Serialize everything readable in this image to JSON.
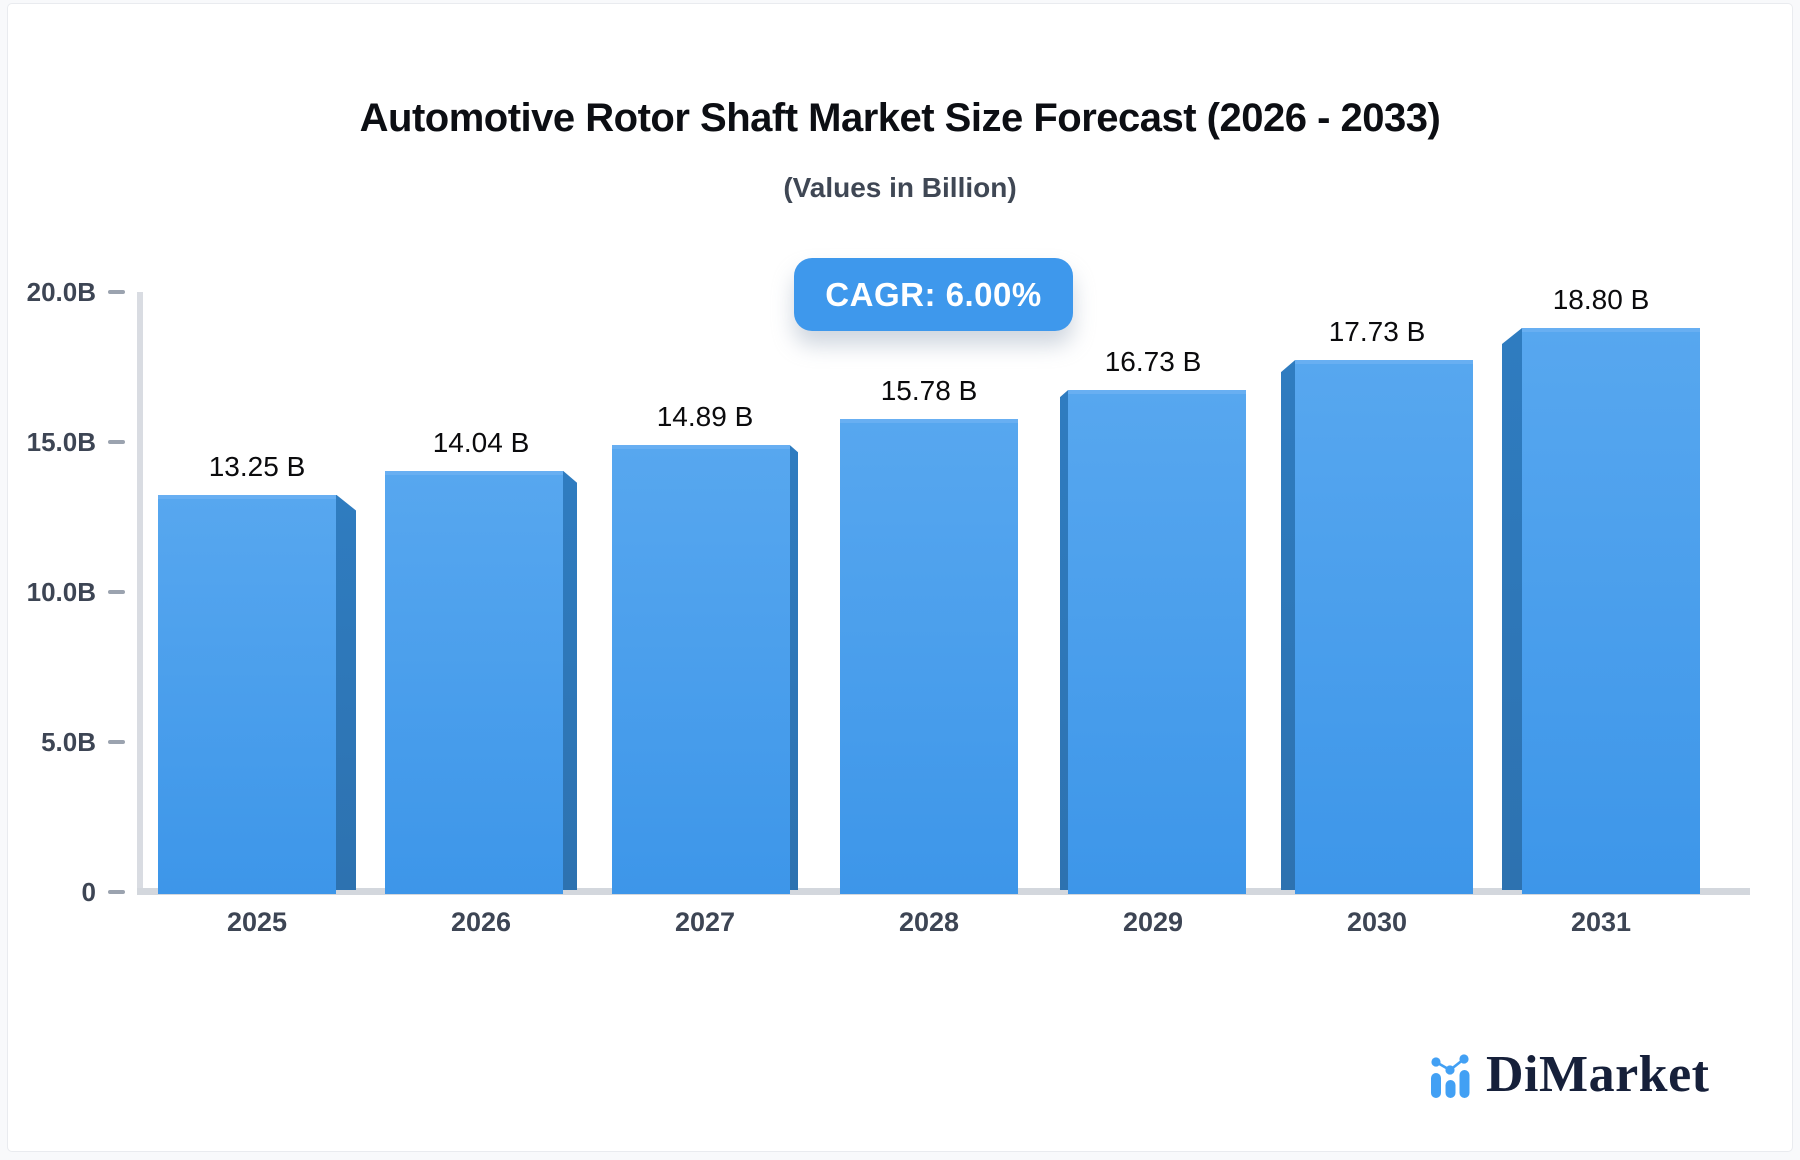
{
  "page": {
    "background": "#f8f9fb",
    "card_background": "#ffffff"
  },
  "badge": {
    "label": "CAGR: 6.00%",
    "color": "#3e98ec",
    "text_color": "#ffffff"
  },
  "chart_data": {
    "type": "bar",
    "title": "Automotive Rotor Shaft Market Size Forecast (2026 - 2033)",
    "subtitle": "(Values in Billion)",
    "cagr": "6.00%",
    "categories": [
      "2025",
      "2026",
      "2027",
      "2028",
      "2029",
      "2030",
      "2031"
    ],
    "values": [
      13.25,
      14.04,
      14.89,
      15.78,
      16.73,
      17.73,
      18.8
    ],
    "value_labels": [
      "13.25 B",
      "14.04 B",
      "14.89 B",
      "15.78 B",
      "16.73 B",
      "17.73 B",
      "18.80 B"
    ],
    "xlabel": "",
    "ylabel": "",
    "ylim": [
      0,
      20
    ],
    "y_ticks": [
      {
        "label": "20.0B",
        "value": 20
      },
      {
        "label": "15.0B",
        "value": 15
      },
      {
        "label": "10.0B",
        "value": 10
      },
      {
        "label": "5.0B",
        "value": 5
      },
      {
        "label": "0",
        "value": 0
      }
    ],
    "grid": false,
    "legend": false,
    "style": "3d-perspective-bars",
    "colors": {
      "face_top": "#57a7ef",
      "face_bottom": "#3d96e9",
      "bevel": "#68aff2",
      "side_top": "#2f7cc0",
      "side_bottom": "#2d72b0",
      "axis_line": "#d9dce2",
      "baseline": "#d3d7dd",
      "tick": "#9ba3af",
      "axis_text": "#3d4554",
      "value_text": "#0b0b0d"
    }
  },
  "logo": {
    "text": "DiMarket",
    "icon": "bar-line-chart-icon",
    "text_color": "#16203a",
    "accent": "#42a0f4"
  }
}
